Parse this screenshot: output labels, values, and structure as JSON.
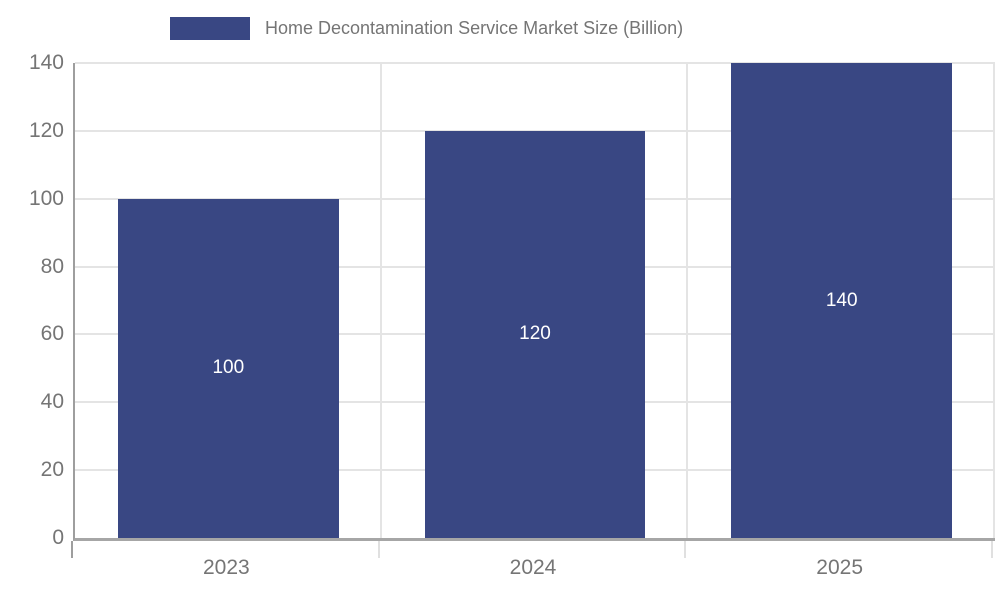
{
  "chart_data": {
    "type": "bar",
    "title": "Home Decontamination Service Market Size (Billion)",
    "categories": [
      "2023",
      "2024",
      "2025"
    ],
    "values": [
      100,
      120,
      140
    ],
    "xlabel": "",
    "ylabel": "",
    "ylim": [
      0,
      140
    ],
    "yticks": [
      0,
      20,
      40,
      60,
      80,
      100,
      120,
      140
    ],
    "grid": true,
    "legend_position": "top",
    "bar_labels_inside": true
  },
  "colors": {
    "bar": "#394783",
    "bar_label": "#ffffff",
    "text": "#757575",
    "grid": "#e4e4e4",
    "axis": "#9e9e9e",
    "background": "#ffffff"
  }
}
